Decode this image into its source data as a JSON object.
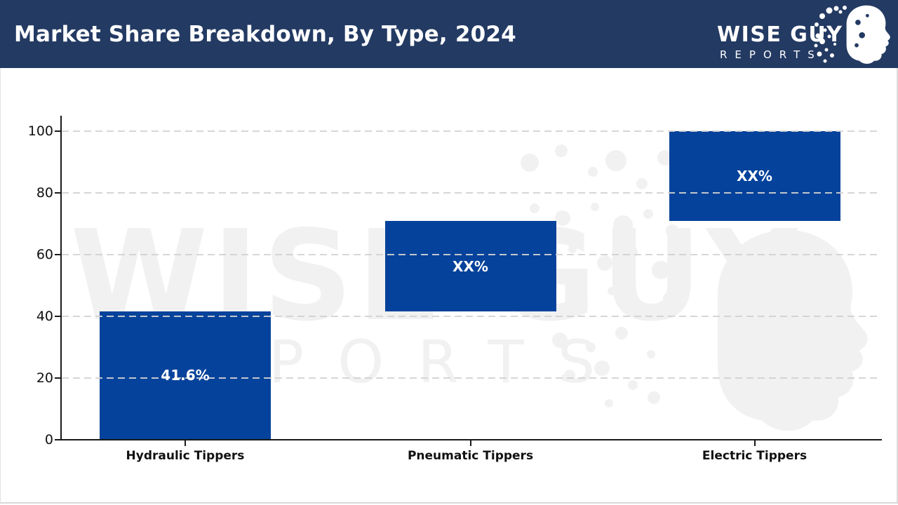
{
  "header": {
    "title": "Market Share Breakdown, By Type, 2024",
    "logo": {
      "wordmark": "WISE GUY",
      "subtext": "REPORTS"
    }
  },
  "watermark": {
    "wordmark": "WISE GUY",
    "subtext": "REPORTS"
  },
  "chart_data": {
    "type": "bar",
    "subtype": "waterfall-breakdown",
    "title": "Market Share Breakdown, By Type, 2024",
    "categories": [
      "Hydraulic Tippers",
      "Pneumatic Tippers",
      "Electric Tippers"
    ],
    "segments": [
      {
        "category": "Hydraulic Tippers",
        "start": 0,
        "end": 41.6,
        "label": "41.6%"
      },
      {
        "category": "Pneumatic Tippers",
        "start": 41.6,
        "end": 70.9,
        "label": "XX%"
      },
      {
        "category": "Electric Tippers",
        "start": 70.9,
        "end": 100,
        "label": "XX%"
      }
    ],
    "yticks": [
      0,
      20,
      40,
      60,
      80,
      100
    ],
    "ylim": [
      0,
      100
    ],
    "grid": true,
    "legend": false,
    "bar_color": "#05429B",
    "bar_label_color": "#ffffff"
  },
  "colors": {
    "header_bg": "#233A63",
    "bar": "#05429B",
    "grid": "#d9d9d9",
    "axis": "#1a1a1a",
    "watermark": "#f1f1f1",
    "title_text": "#ffffff"
  }
}
